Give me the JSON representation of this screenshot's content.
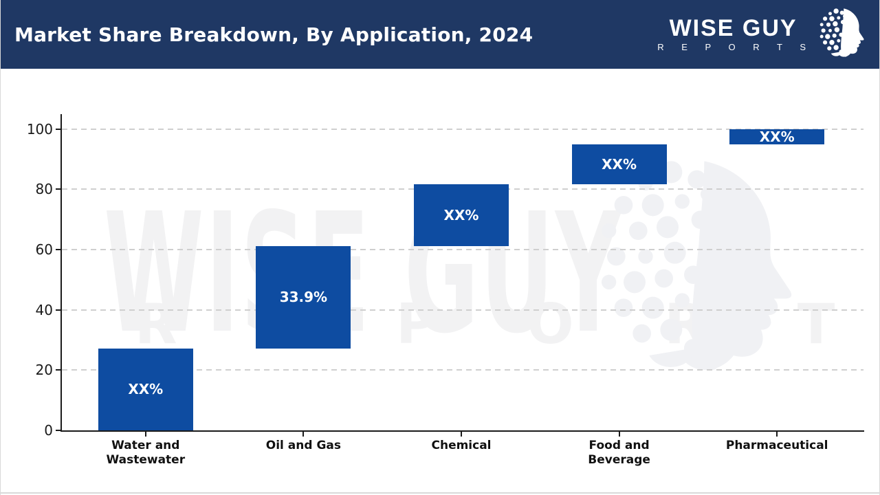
{
  "header": {
    "title": "Market Share Breakdown, By Application, 2024",
    "bg_color": "#1f3864",
    "logo": {
      "line1": "WISE GUY",
      "line2": "R E P O R T S"
    }
  },
  "watermark": {
    "line1": "WISE GUY",
    "line2": "R E P O R T S"
  },
  "chart_data": {
    "type": "bar",
    "subtype": "floating-waterfall",
    "title": "Market Share Breakdown, By Application, 2024",
    "categories": [
      "Water and Wastewater",
      "Oil and Gas",
      "Chemical",
      "Food and Beverage",
      "Pharmaceutical"
    ],
    "segments": [
      {
        "category": "Water and Wastewater",
        "base": 0,
        "top": 27.2,
        "label": "XX%"
      },
      {
        "category": "Oil and Gas",
        "base": 27.2,
        "top": 61.1,
        "label": "33.9%"
      },
      {
        "category": "Chemical",
        "base": 61.1,
        "top": 81.7,
        "label": "XX%"
      },
      {
        "category": "Food and Beverage",
        "base": 81.7,
        "top": 94.8,
        "label": "XX%"
      },
      {
        "category": "Pharmaceutical",
        "base": 94.8,
        "top": 100,
        "label": "XX%"
      }
    ],
    "y_ticks": [
      0,
      20,
      40,
      60,
      80,
      100
    ],
    "ylim": [
      0,
      105
    ],
    "xlabel": "",
    "ylabel": "",
    "grid": "horizontal-dashed",
    "legend": "none",
    "bar_color": "#0e4ca1",
    "bar_label_color": "#ffffff"
  }
}
